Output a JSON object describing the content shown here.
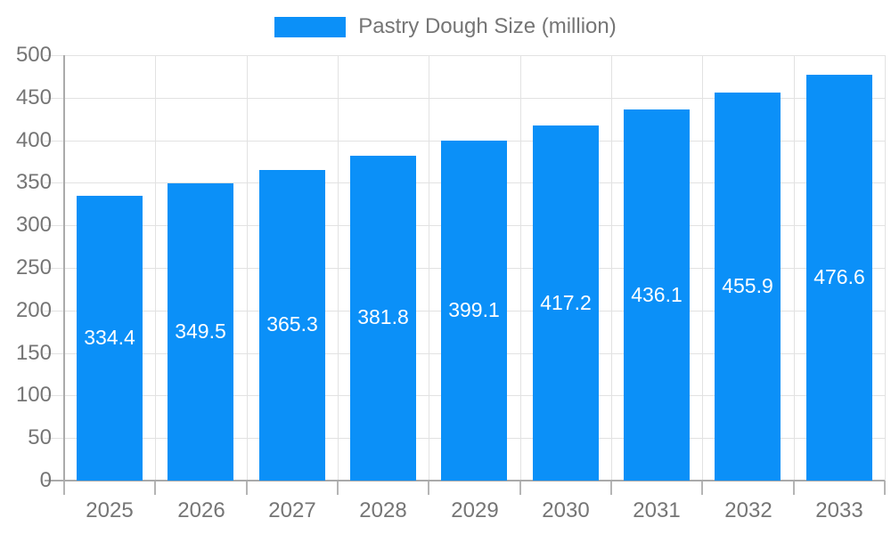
{
  "chart_data": {
    "type": "bar",
    "title": "Pastry Dough Size (million)",
    "legend": {
      "position": "top",
      "entries": [
        "Pastry Dough Size (million)"
      ]
    },
    "categories": [
      "2025",
      "2026",
      "2027",
      "2028",
      "2029",
      "2030",
      "2031",
      "2032",
      "2033"
    ],
    "series": [
      {
        "name": "Pastry Dough Size (million)",
        "values": [
          334.4,
          349.5,
          365.3,
          381.8,
          399.1,
          417.2,
          436.1,
          455.9,
          476.6
        ]
      }
    ],
    "value_labels": [
      "334.4",
      "349.5",
      "365.3",
      "381.8",
      "399.1",
      "417.2",
      "436.1",
      "455.9",
      "476.6"
    ],
    "xlabel": "",
    "ylabel": "",
    "ylim": [
      0,
      500
    ],
    "ytick_step": 50,
    "yticks": [
      0,
      50,
      100,
      150,
      200,
      250,
      300,
      350,
      400,
      450,
      500
    ],
    "grid": true,
    "colors": {
      "bar": "#0b90f8",
      "grid": "#e2e2e2",
      "axis": "#aaaaaa",
      "tick": "#b5b5b5",
      "text": "#757575",
      "value_text": "#ffffff",
      "background": "#ffffff"
    }
  }
}
